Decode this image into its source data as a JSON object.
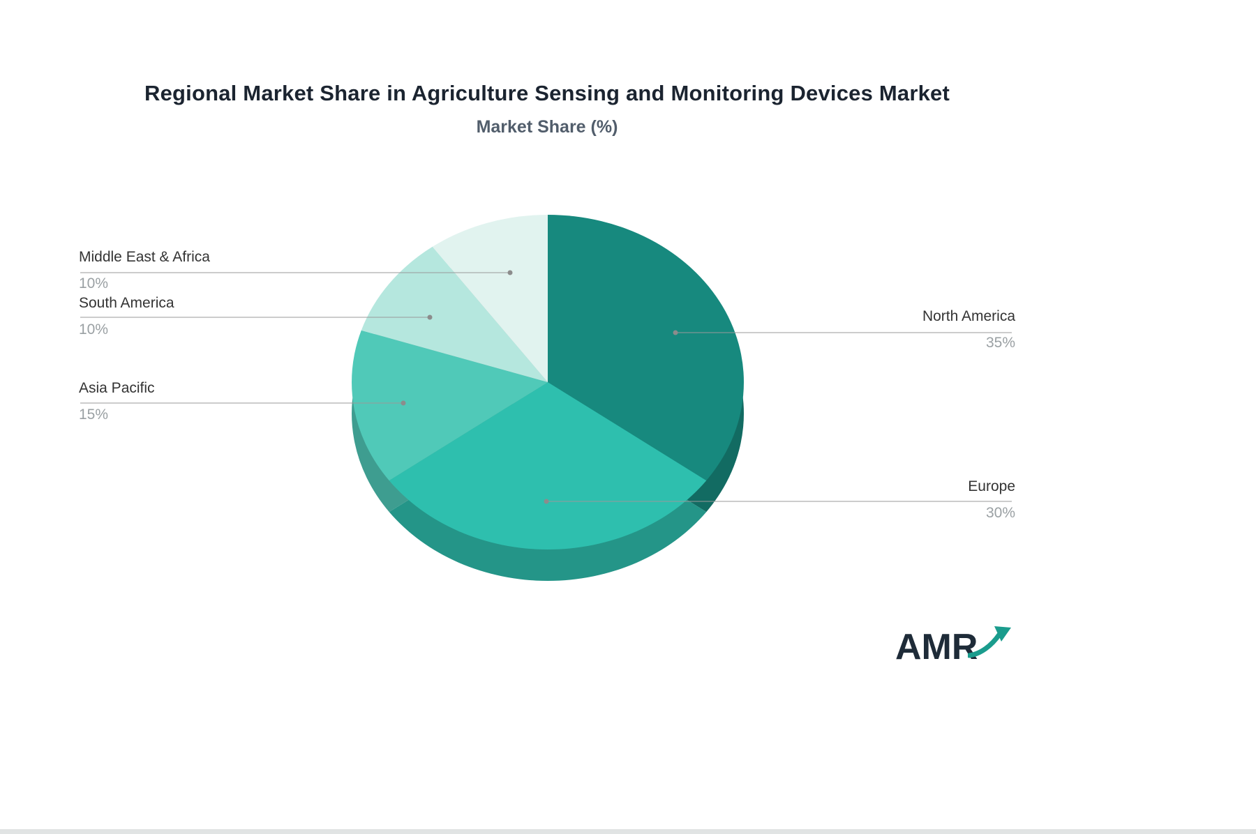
{
  "chart_data": {
    "type": "pie",
    "title": "Regional Market Share in Agriculture Sensing and Monitoring Devices Market",
    "subtitle": "Market Share (%)",
    "unit": "%",
    "total": 100,
    "style": "3d-pie",
    "start_angle": "top",
    "direction": "clockwise",
    "legend": "none",
    "label_layout": "outside labels with leader lines, name above percentage",
    "segments": [
      {
        "label": "North America",
        "value": 35,
        "display": "35%",
        "color": "#17897e",
        "side": "right"
      },
      {
        "label": "Europe",
        "value": 30,
        "display": "30%",
        "color": "#2ebfae",
        "side": "right"
      },
      {
        "label": "Asia Pacific",
        "value": 15,
        "display": "15%",
        "color": "#50c9b8",
        "side": "left"
      },
      {
        "label": "South America",
        "value": 10,
        "display": "10%",
        "color": "#b5e7de",
        "side": "left"
      },
      {
        "label": "Middle East & Africa",
        "value": 10,
        "display": "10%",
        "color": "#e1f3ef",
        "side": "left"
      }
    ]
  },
  "logo": {
    "text": "AMR",
    "arrow_color": "#1a9c8d"
  }
}
